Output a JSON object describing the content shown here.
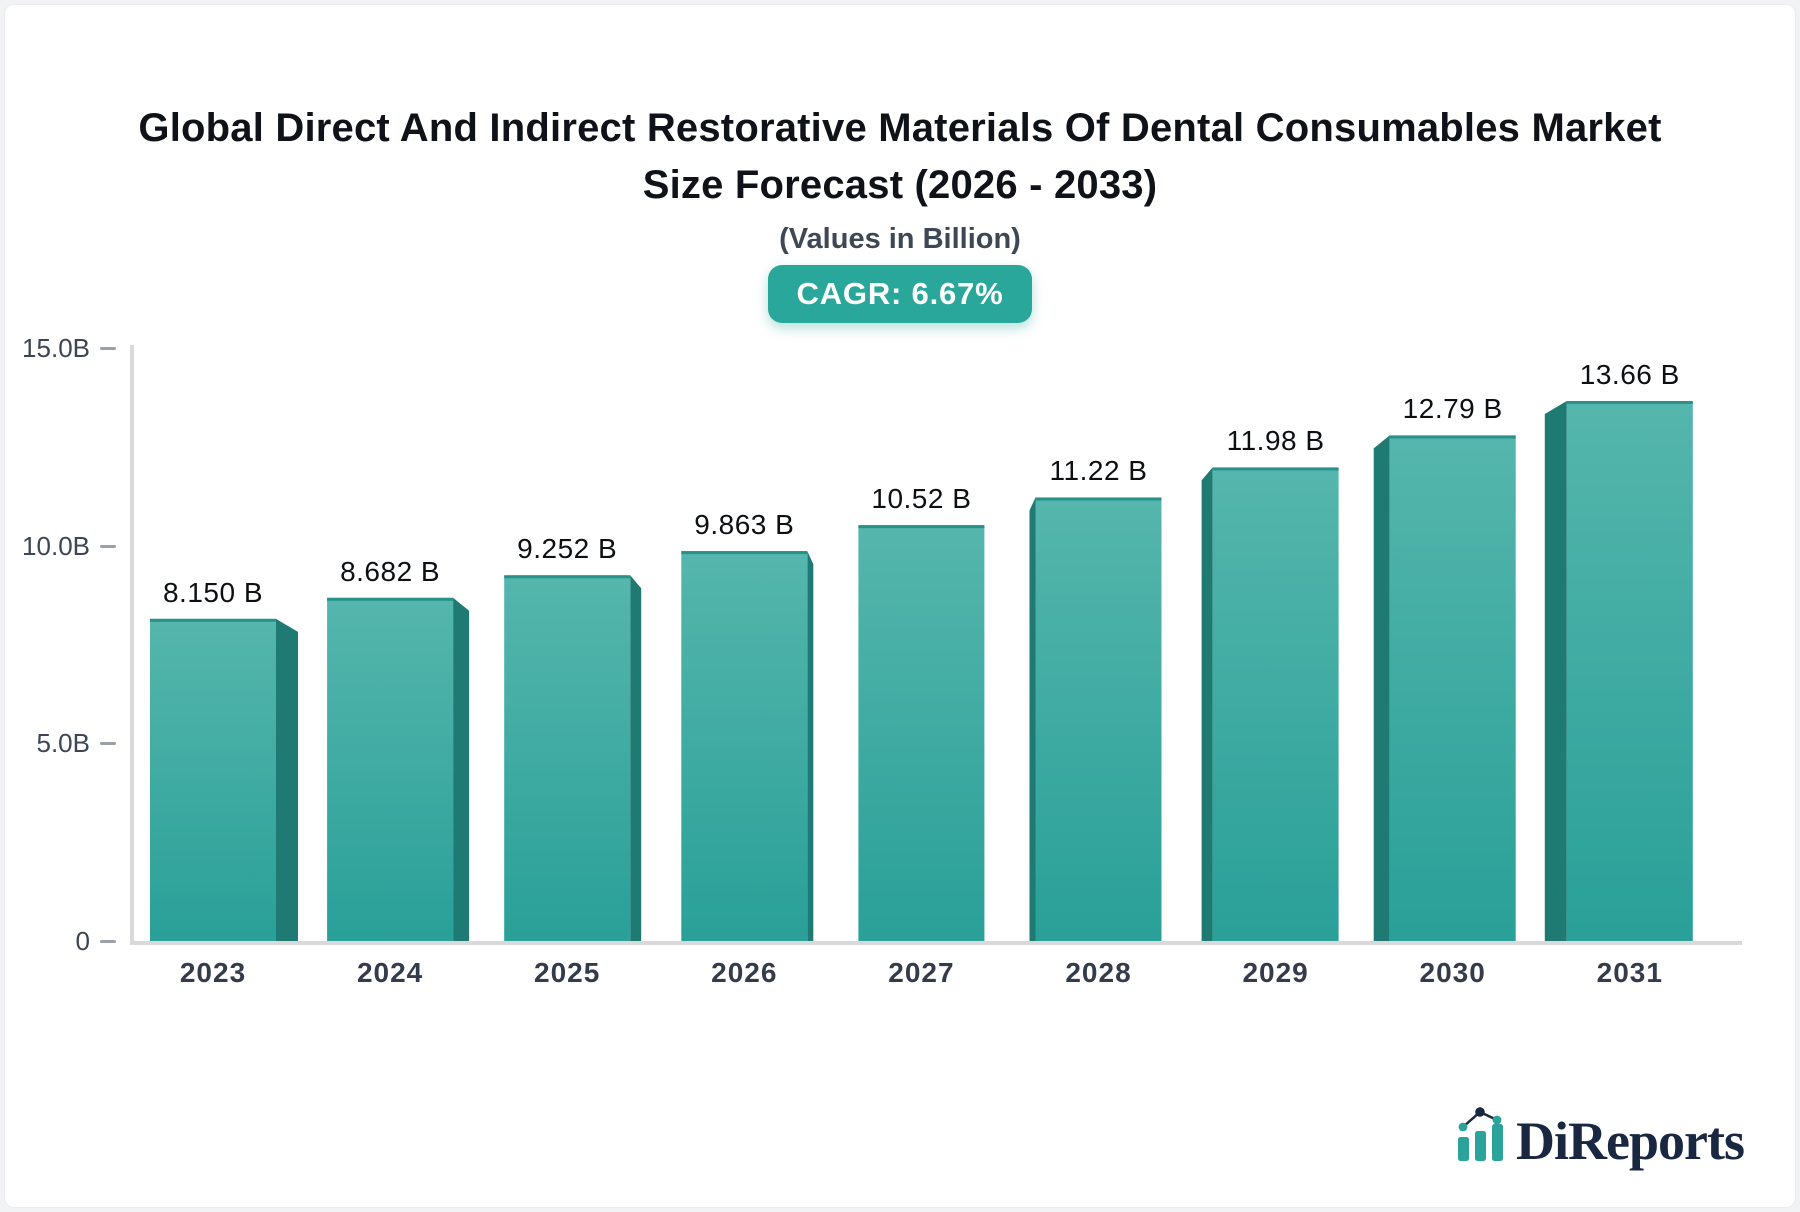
{
  "header": {
    "title_lines": [
      "Global Direct And Indirect Restorative Materials Of Dental Consumables Market",
      "Size Forecast (2026 - 2033)"
    ],
    "subtitle": "(Values in Billion)",
    "cagr_label": "CAGR: 6.67%"
  },
  "chart_data": {
    "type": "bar",
    "title": "Global Direct And Indirect Restorative Materials Of Dental Consumables Market Size Forecast (2026 - 2033)",
    "subtitle": "(Values in Billion)",
    "cagr": "6.67%",
    "categories": [
      "2023",
      "2024",
      "2025",
      "2026",
      "2027",
      "2028",
      "2029",
      "2030",
      "2031"
    ],
    "values": [
      8.15,
      8.682,
      9.252,
      9.863,
      10.52,
      11.22,
      11.98,
      12.79,
      13.66
    ],
    "value_labels": [
      "8.150 B",
      "8.682 B",
      "9.252 B",
      "9.863 B",
      "10.52 B",
      "11.22 B",
      "11.98 B",
      "12.79 B",
      "13.66 B"
    ],
    "yticks": [
      {
        "label": "15.0B",
        "value": 15
      },
      {
        "label": "10.0B",
        "value": 10
      },
      {
        "label": "5.0B",
        "value": 5
      },
      {
        "label": "0",
        "value": 0
      }
    ],
    "ylim": [
      0,
      15
    ],
    "xlabel": "",
    "ylabel": "",
    "grid": false,
    "legend": false,
    "style": "3d-perspective-columns"
  },
  "colors": {
    "bar_gradient_top": "#55b6ac",
    "bar_gradient_bottom": "#29a098",
    "bar_side": "#1e7a72",
    "bar_top_edge": "#289189",
    "badge": "#2aa79b",
    "axis": "#d7d9dd",
    "tick": "#9aa1a9",
    "logo_teal": "#2ba39a",
    "logo_navy": "#1a2740"
  },
  "branding": {
    "logo_text": "DiReports",
    "logo_icon": "mini-bar-chart-icon"
  }
}
